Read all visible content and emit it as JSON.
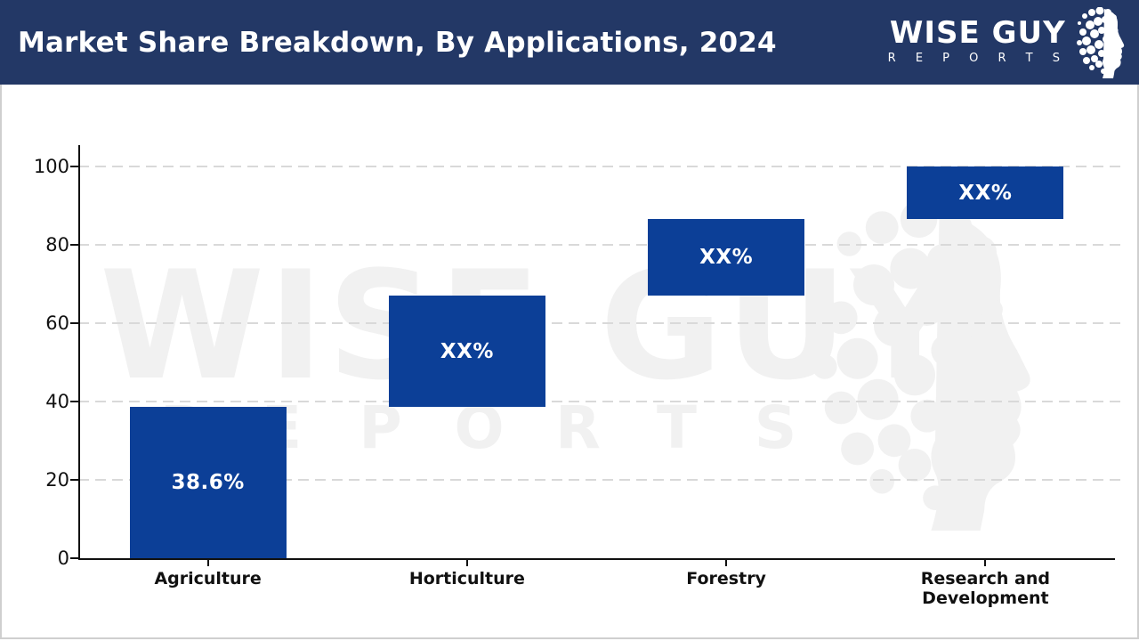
{
  "header": {
    "title": "Market Share Breakdown, By Applications, 2024",
    "logo": {
      "wordmark": "WISE GUY",
      "subtext": "R E P O R T S"
    }
  },
  "watermark": {
    "wordmark": "WISE GUY",
    "subtext": "REPORTS"
  },
  "colors": {
    "header_bg": "#233866",
    "bar": "#0c3f97",
    "grid": "#d9d9d9",
    "axis": "#111111",
    "watermark": "#f1f1f1",
    "bar_label": "#ffffff",
    "frame_edge": "#cfcfcf"
  },
  "chart_data": {
    "type": "bar",
    "subtype": "waterfall",
    "title": "Market Share Breakdown, By Applications, 2024",
    "categories": [
      "Agriculture",
      "Horticulture",
      "Forestry",
      "Research and Development"
    ],
    "series": [
      {
        "name": "Market Share",
        "segments": [
          [
            0,
            38.6
          ],
          [
            38.6,
            67.0
          ],
          [
            67.0,
            86.5
          ],
          [
            86.5,
            100.0
          ]
        ]
      }
    ],
    "bar_labels": [
      "38.6%",
      "XX%",
      "XX%",
      "XX%"
    ],
    "ylim": [
      0,
      100
    ],
    "yticks": [
      0,
      20,
      40,
      60,
      80,
      100
    ],
    "grid": "dashed-horizontal",
    "legend": "none",
    "xlabel": "",
    "ylabel": ""
  }
}
